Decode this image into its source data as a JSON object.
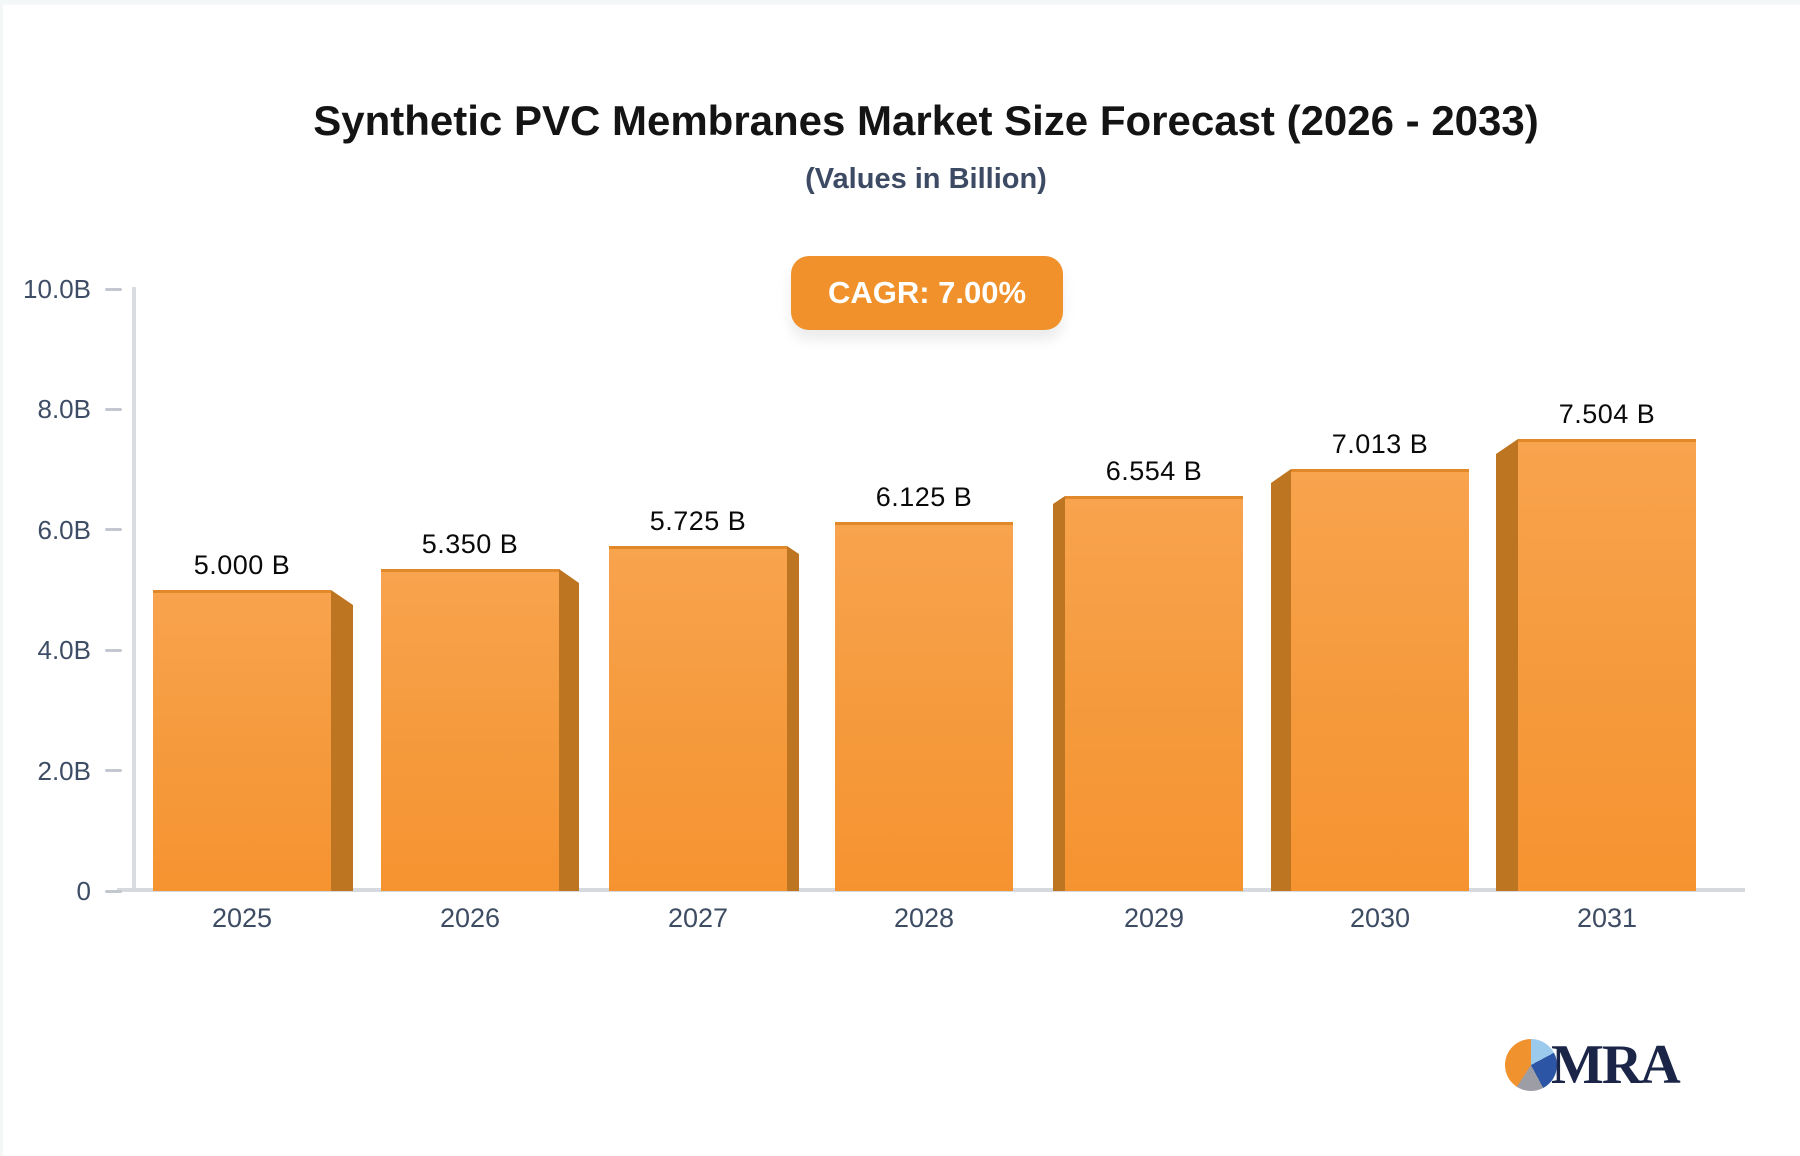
{
  "header": {
    "title": "Synthetic PVC Membranes Market Size Forecast (2026 - 2033)",
    "subtitle": "(Values in Billion)"
  },
  "badge": {
    "label": "CAGR: 7.00%",
    "background": "#F0912B",
    "text_color": "#FFFFFF"
  },
  "chart_data": {
    "type": "bar",
    "title": "Synthetic PVC Membranes Market Size Forecast (2026 - 2033)",
    "subtitle": "(Values in Billion)",
    "cagr_label": "CAGR: 7.00%",
    "categories": [
      "2025",
      "2026",
      "2027",
      "2028",
      "2029",
      "2030",
      "2031"
    ],
    "values": [
      5.0,
      5.35,
      5.725,
      6.125,
      6.554,
      7.013,
      7.504
    ],
    "value_labels": [
      "5.000 B",
      "5.350 B",
      "5.725 B",
      "6.125 B",
      "6.554 B",
      "7.013 B",
      "7.504 B"
    ],
    "xlabel": "",
    "ylabel": "",
    "ylim": [
      0,
      10
    ],
    "y_ticks": [
      {
        "value": 10,
        "label": "10.0B"
      },
      {
        "value": 8,
        "label": "8.0B"
      },
      {
        "value": 6,
        "label": "6.0B"
      },
      {
        "value": 4,
        "label": "4.0B"
      },
      {
        "value": 2,
        "label": "2.0B"
      },
      {
        "value": 0,
        "label": "0"
      }
    ],
    "grid": false,
    "legend": null,
    "bar_color_top": "#F8A34E",
    "bar_color_bottom": "#F69331",
    "bar_side_color": "#BE7521",
    "bar_top_stroke": "#E1892A",
    "axis_color": "#D9DCE1",
    "tick_label_color": "#3E4D66",
    "value_label_color": "#0A0A0A"
  },
  "logo": {
    "text": "MRA",
    "pie_slice_colors": [
      "#F0922D",
      "#9CCAEC",
      "#2C55A5",
      "#9D9DA6"
    ]
  }
}
